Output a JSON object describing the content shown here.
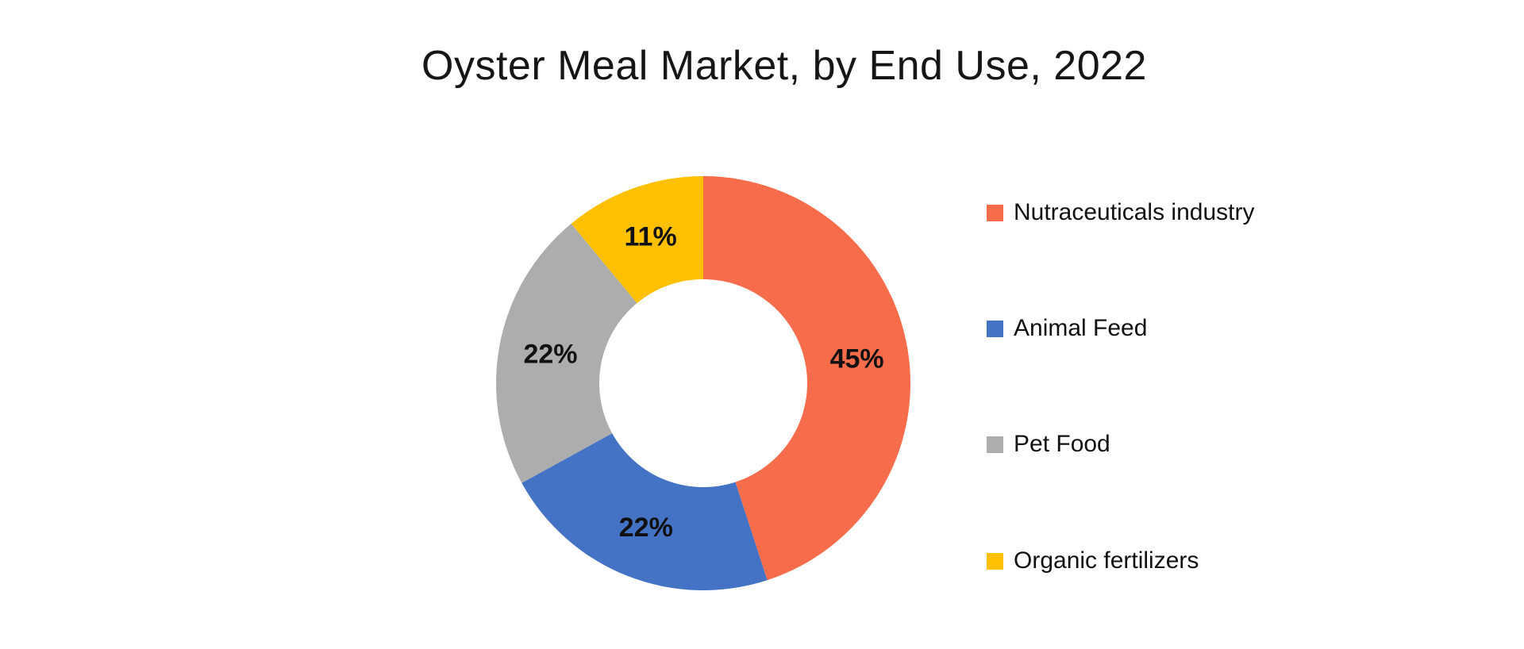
{
  "page": {
    "background": "#ffffff"
  },
  "title": "Oyster Meal Market, by End Use, 2022",
  "chart_data": {
    "type": "pie",
    "subtype": "donut",
    "title": "Oyster Meal Market, by End Use, 2022",
    "categories": [
      "Nutraceuticals industry",
      "Animal Feed",
      "Pet Food",
      "Organic fertilizers"
    ],
    "values": [
      45,
      22,
      22,
      11
    ],
    "data_labels": [
      "45%",
      "22%",
      "22%",
      "11%"
    ],
    "colors": [
      "#F76C4A",
      "#4472C4",
      "#ADADAD",
      "#FFC000"
    ],
    "hole_ratio": 0.5,
    "start_angle_deg": 0,
    "direction": "clockwise",
    "legend_position": "right",
    "data_label_color": "#111111"
  },
  "legend": {
    "items": [
      {
        "label": "Nutraceuticals industry",
        "color": "#F76C4A"
      },
      {
        "label": "Animal Feed",
        "color": "#4472C4"
      },
      {
        "label": "Pet Food",
        "color": "#ADADAD"
      },
      {
        "label": "Organic fertilizers",
        "color": "#FFC000"
      }
    ]
  }
}
